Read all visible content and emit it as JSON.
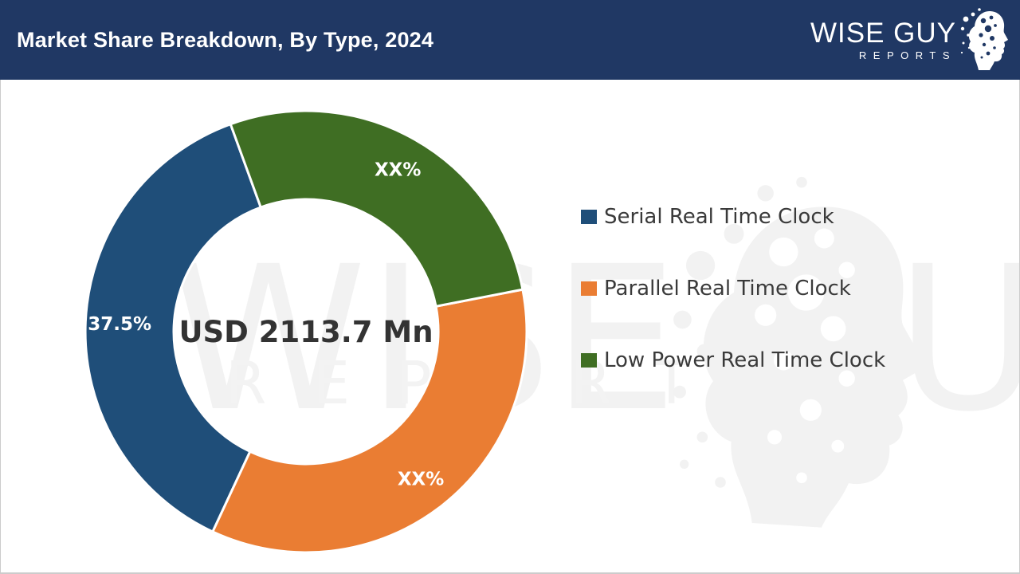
{
  "header": {
    "title": "Market Share Breakdown, By Type, 2024"
  },
  "logo": {
    "line1": "WISE GUY",
    "line2": "REPORTS"
  },
  "watermark": {
    "line1": "WISE GUY",
    "line2": "REPORTS"
  },
  "chart_data": {
    "type": "pie",
    "subtype": "donut",
    "title": "Market Share Breakdown, By Type, 2024",
    "center_label": "USD 2113.7 Mn",
    "start_angle_deg": 110,
    "direction": "counterclockwise",
    "donut_hole_ratio": 0.6,
    "legend_position": "right",
    "segments": [
      {
        "name": "Serial Real Time Clock",
        "value_pct": 37.5,
        "label": "37.5%",
        "color": "#1f4e79"
      },
      {
        "name": "Parallel Real Time Clock",
        "value_pct": 35.0,
        "label": "XX%",
        "color": "#ea7d33"
      },
      {
        "name": "Low Power Real Time Clock",
        "value_pct": 27.5,
        "label": "XX%",
        "color": "#3f6e23"
      }
    ]
  },
  "colors": {
    "header_bg": "#203864",
    "center_text": "#333333",
    "legend_text": "#3a3a3a",
    "watermark": "#f2f2f2",
    "border": "#cccccc"
  }
}
